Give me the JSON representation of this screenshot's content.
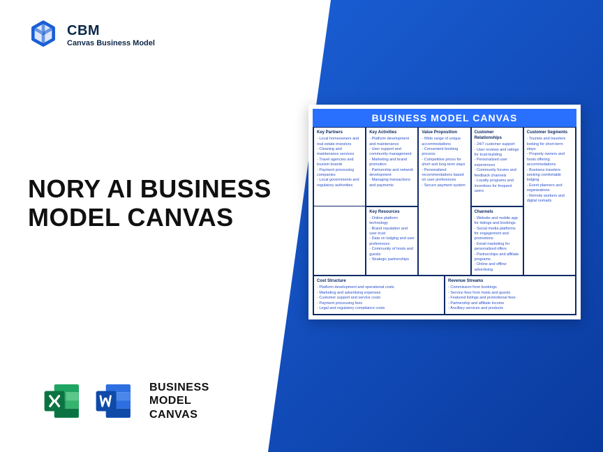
{
  "brand": {
    "acronym": "CBM",
    "subtitle": "Canvas Business Model",
    "logo_color": "#1a5fd6"
  },
  "main_title": "NORY AI BUSINESS MODEL CANVAS",
  "footer": {
    "label": "BUSINESS\nMODEL\nCANVAS",
    "excel_colors": {
      "dark": "#0b7341",
      "light": "#1fa463"
    },
    "word_colors": {
      "dark": "#0f4aa8",
      "light": "#2d6fe0"
    }
  },
  "canvas": {
    "title": "BUSINESS MODEL CANVAS",
    "title_bg": "#2a70ff",
    "border_color": "#0d2a66",
    "text_color": "#2a50c8",
    "blocks": {
      "key_partners": {
        "header": "Key Partners",
        "items": [
          "Local homeowners and real estate investors",
          "Cleaning and maintenance services",
          "Travel agencies and tourism boards",
          "Payment processing companies",
          "Local governments and regulatory authorities"
        ]
      },
      "key_activities": {
        "header": "Key Activities",
        "items": [
          "Platform development and maintenance",
          "User support and community management",
          "Marketing and brand promotion",
          "Partnership and network development",
          "Managing transactions and payments"
        ]
      },
      "value_proposition": {
        "header": "Value Proposition",
        "items": [
          "Wide range of unique accommodations",
          "Convenient booking process",
          "Competitive prices for short and long-term stays",
          "Personalized recommendations based on user preferences",
          "Secure payment system"
        ]
      },
      "customer_relationships": {
        "header": "Customer Relationships",
        "items": [
          "24/7 customer support",
          "User reviews and ratings for trust-building",
          "Personalized user experiences",
          "Community forums and feedback channels",
          "Loyalty programs and incentives for frequent users"
        ]
      },
      "customer_segments": {
        "header": "Customer Segments",
        "items": [
          "Tourists and travelers looking for short-term stays",
          "Property owners and hosts offering accommodations",
          "Business travelers seeking comfortable lodging",
          "Event planners and organizations",
          "Remote workers and digital nomads"
        ]
      },
      "key_resources": {
        "header": "Key Resources",
        "items": [
          "Online platform technology",
          "Brand reputation and user trust",
          "Data on lodging and user preferences",
          "Community of hosts and guests",
          "Strategic partnerships"
        ]
      },
      "channels": {
        "header": "Channels",
        "items": [
          "Website and mobile app for listings and bookings",
          "Social media platforms for engagement and promotions",
          "Email marketing for personalized offers",
          "Partnerships and affiliate programs",
          "Online and offline advertising"
        ]
      },
      "cost_structure": {
        "header": "Cost Structure",
        "items": [
          "Platform development and operational costs",
          "Marketing and advertising expenses",
          "Customer support and service costs",
          "Payment processing fees",
          "Legal and regulatory compliance costs"
        ]
      },
      "revenue_streams": {
        "header": "Revenue Streams",
        "items": [
          "Commission from bookings",
          "Service fees from hosts and guests",
          "Featured listings and promotional fees",
          "Partnership and affiliate income",
          "Ancillary services and products"
        ]
      }
    }
  }
}
